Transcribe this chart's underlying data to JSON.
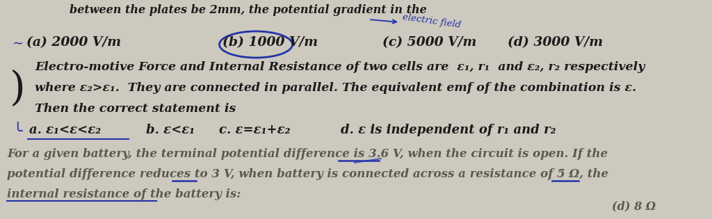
{
  "bg_color": "#cdc9be",
  "text_color": "#1a1a1a",
  "blue_pen": "#2233aa",
  "faded_color": "#5a5a4a",
  "font_size_main": 12.5,
  "font_size_top": 11.5,
  "font_size_answer": 13,
  "top_text": "between the plates be 2mm, the potential gradient in the",
  "electric_field_text": "→ electric field",
  "opt_a": "(a) 2000 V/m",
  "opt_b": "(b) 1000 V/m",
  "opt_c": "(c) 5000 V/m",
  "opt_d": "(d) 3000 V/m",
  "line1": "Electro-motive Force and Internal Resistance of two cells are  ε₁, r₁  and ε₂, r₂ respectively",
  "line2": "where ε₂>ε₁.  They are connected in parallel. The equivalent emf of the combination is ε.",
  "line3": "Then the correct statement is",
  "ans_a": "a. ε₁<ε<ε₂",
  "ans_b": "b. ε<ε₁",
  "ans_c": "c. ε=ε₁+ε₂",
  "ans_d": "d. ε is independent of r₁ and r₂",
  "q2_line1": "For a given battery, the terminal potential difference is 3.6 V, when the circuit is open. If the",
  "q2_line2": "potential difference reduces to 3 V, when battery is connected across a resistance of 5 Ω, the",
  "q2_line3": "internal resistance of the battery is:",
  "bottom_hint": "(d) 8 Ω"
}
